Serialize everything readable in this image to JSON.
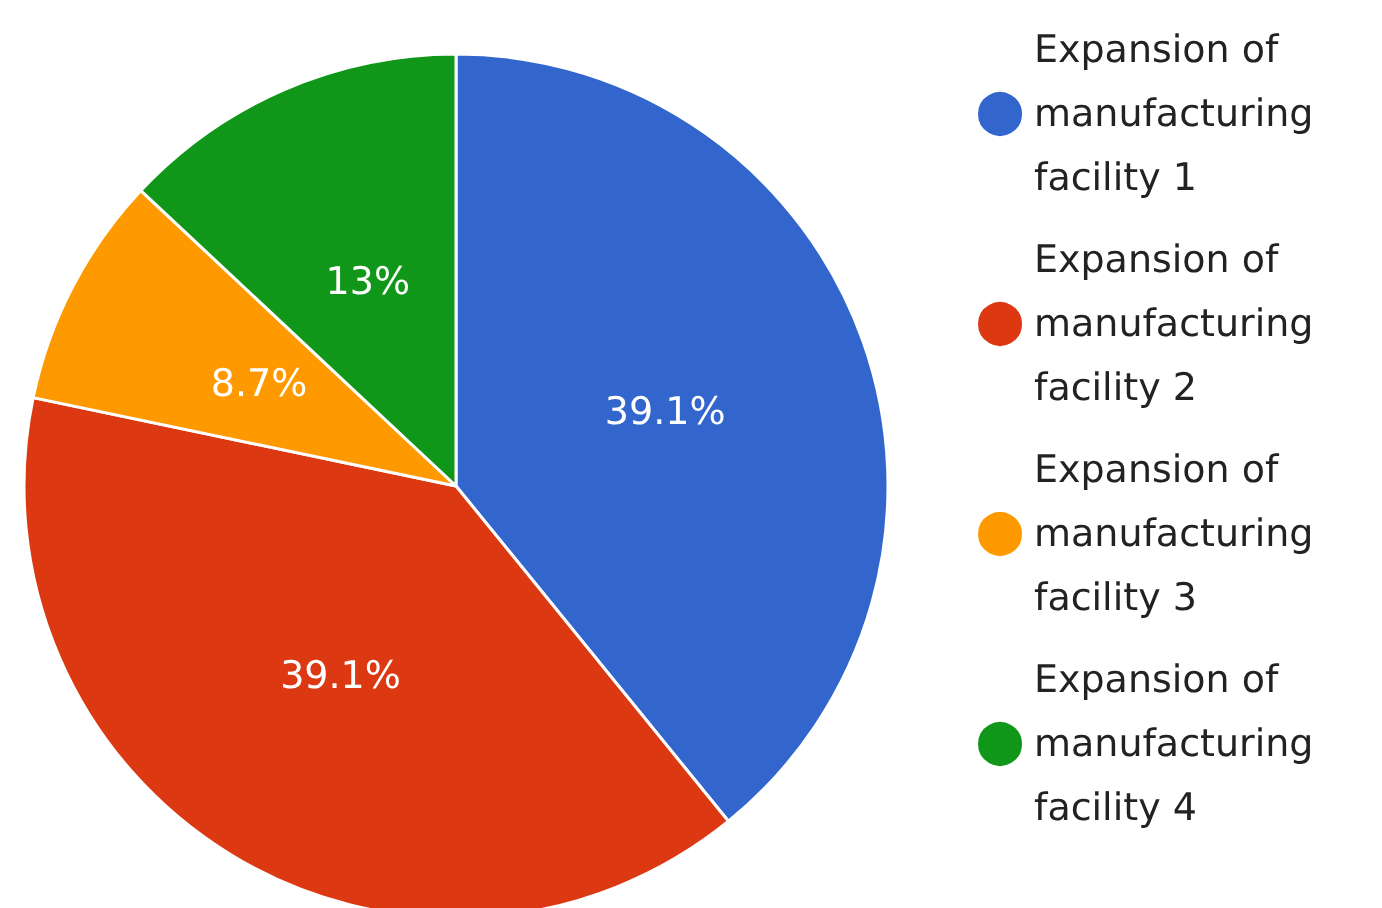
{
  "chart_data": {
    "type": "pie",
    "categories": [
      "Expansion of manufacturing facility 1",
      "Expansion of manufacturing facility 2",
      "Expansion of manufacturing facility 3",
      "Expansion of manufacturing facility 4"
    ],
    "values": [
      39.1,
      39.1,
      8.7,
      13
    ],
    "colors": [
      "#3366cc",
      "#dc3912",
      "#ff9900",
      "#109618"
    ],
    "value_labels": [
      "39.1%",
      "39.1%",
      "8.7%",
      "13%"
    ],
    "legend": "top right"
  }
}
